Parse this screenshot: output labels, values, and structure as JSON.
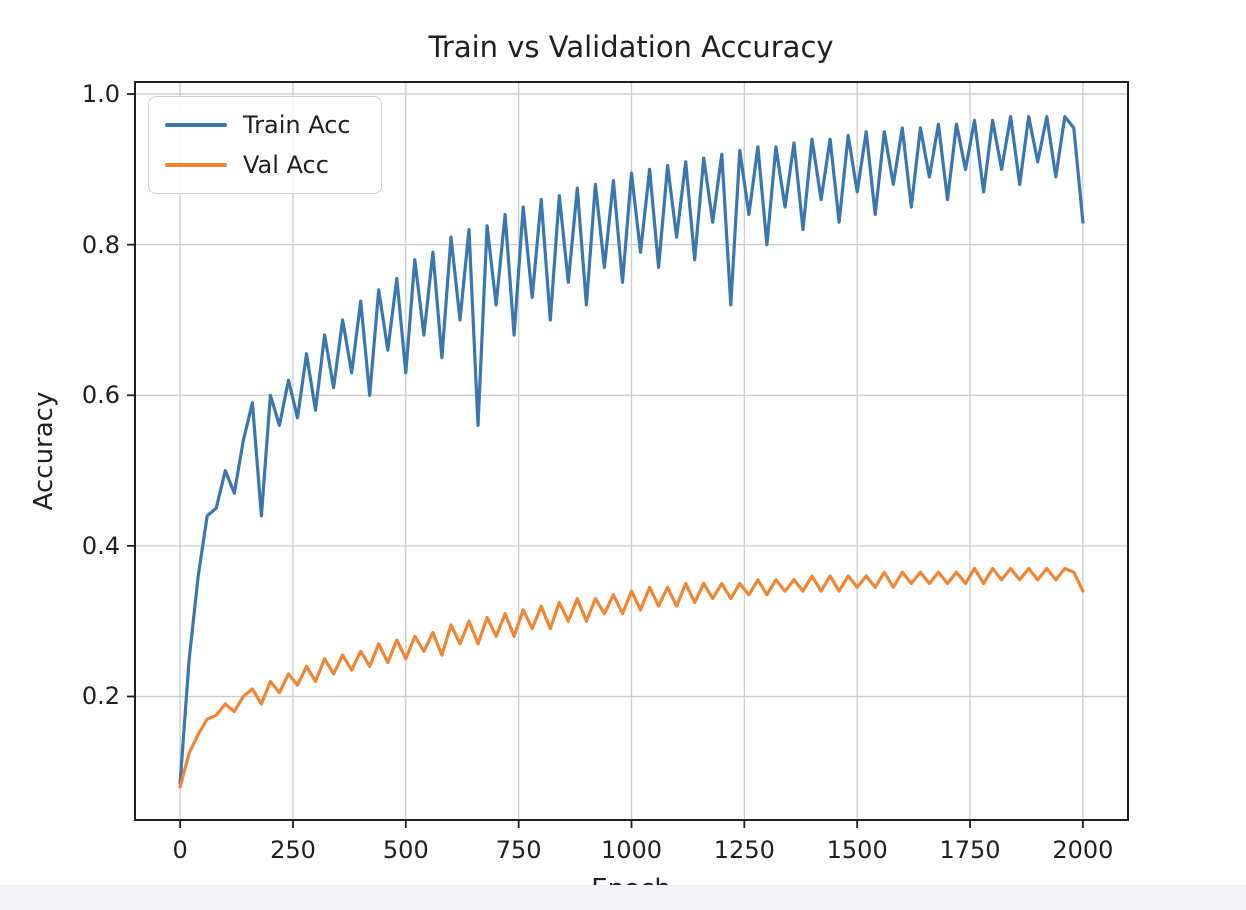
{
  "page": {
    "background": "#ffffff",
    "bottom_band_color": "#f4f4f6"
  },
  "chart_data": {
    "type": "line",
    "title": "Train vs Validation Accuracy",
    "xlabel": "Epoch",
    "ylabel": "Accuracy",
    "xlim": [
      -100,
      2100
    ],
    "ylim": [
      0.036,
      1.016
    ],
    "grid": true,
    "grid_color": "#cccccc",
    "spine_color": "#1f1f1f",
    "legend_position": "upper left",
    "xticks": [
      0,
      250,
      500,
      750,
      1000,
      1250,
      1500,
      1750,
      2000
    ],
    "xtick_labels": [
      "0",
      "250",
      "500",
      "750",
      "1000",
      "1250",
      "1500",
      "1750",
      "2000"
    ],
    "yticks": [
      1.0,
      0.8,
      0.6,
      0.4,
      0.2
    ],
    "ytick_labels": [
      "1.0",
      "0.8",
      "0.6",
      "0.4",
      "0.2"
    ],
    "x_start": 0,
    "x_step": 20,
    "series": [
      {
        "name": "Train Acc",
        "color": "#3a76af",
        "values": [
          0.085,
          0.25,
          0.36,
          0.44,
          0.45,
          0.5,
          0.47,
          0.54,
          0.59,
          0.44,
          0.6,
          0.56,
          0.62,
          0.57,
          0.655,
          0.58,
          0.68,
          0.61,
          0.7,
          0.63,
          0.725,
          0.6,
          0.74,
          0.66,
          0.755,
          0.63,
          0.78,
          0.68,
          0.79,
          0.65,
          0.81,
          0.7,
          0.82,
          0.56,
          0.825,
          0.72,
          0.84,
          0.68,
          0.85,
          0.73,
          0.86,
          0.7,
          0.865,
          0.75,
          0.875,
          0.72,
          0.88,
          0.77,
          0.885,
          0.75,
          0.895,
          0.79,
          0.9,
          0.77,
          0.905,
          0.81,
          0.91,
          0.78,
          0.915,
          0.83,
          0.92,
          0.72,
          0.925,
          0.84,
          0.93,
          0.8,
          0.93,
          0.85,
          0.935,
          0.82,
          0.94,
          0.86,
          0.94,
          0.83,
          0.945,
          0.87,
          0.95,
          0.84,
          0.95,
          0.88,
          0.955,
          0.85,
          0.955,
          0.89,
          0.96,
          0.86,
          0.96,
          0.9,
          0.965,
          0.87,
          0.965,
          0.9,
          0.97,
          0.88,
          0.97,
          0.91,
          0.97,
          0.89,
          0.97,
          0.955,
          0.83
        ]
      },
      {
        "name": "Val Acc",
        "color": "#f08634",
        "values": [
          0.08,
          0.125,
          0.15,
          0.17,
          0.175,
          0.19,
          0.18,
          0.2,
          0.21,
          0.19,
          0.22,
          0.205,
          0.23,
          0.215,
          0.24,
          0.22,
          0.25,
          0.23,
          0.255,
          0.235,
          0.26,
          0.24,
          0.27,
          0.245,
          0.275,
          0.25,
          0.28,
          0.26,
          0.285,
          0.255,
          0.295,
          0.27,
          0.3,
          0.27,
          0.305,
          0.28,
          0.31,
          0.28,
          0.315,
          0.29,
          0.32,
          0.29,
          0.325,
          0.3,
          0.33,
          0.3,
          0.33,
          0.31,
          0.335,
          0.31,
          0.34,
          0.315,
          0.345,
          0.32,
          0.345,
          0.32,
          0.35,
          0.325,
          0.35,
          0.33,
          0.35,
          0.33,
          0.35,
          0.335,
          0.355,
          0.335,
          0.355,
          0.34,
          0.355,
          0.34,
          0.36,
          0.34,
          0.36,
          0.34,
          0.36,
          0.345,
          0.36,
          0.345,
          0.365,
          0.345,
          0.365,
          0.35,
          0.365,
          0.35,
          0.365,
          0.35,
          0.365,
          0.35,
          0.37,
          0.35,
          0.37,
          0.355,
          0.37,
          0.355,
          0.37,
          0.355,
          0.37,
          0.355,
          0.37,
          0.365,
          0.34
        ]
      }
    ]
  }
}
